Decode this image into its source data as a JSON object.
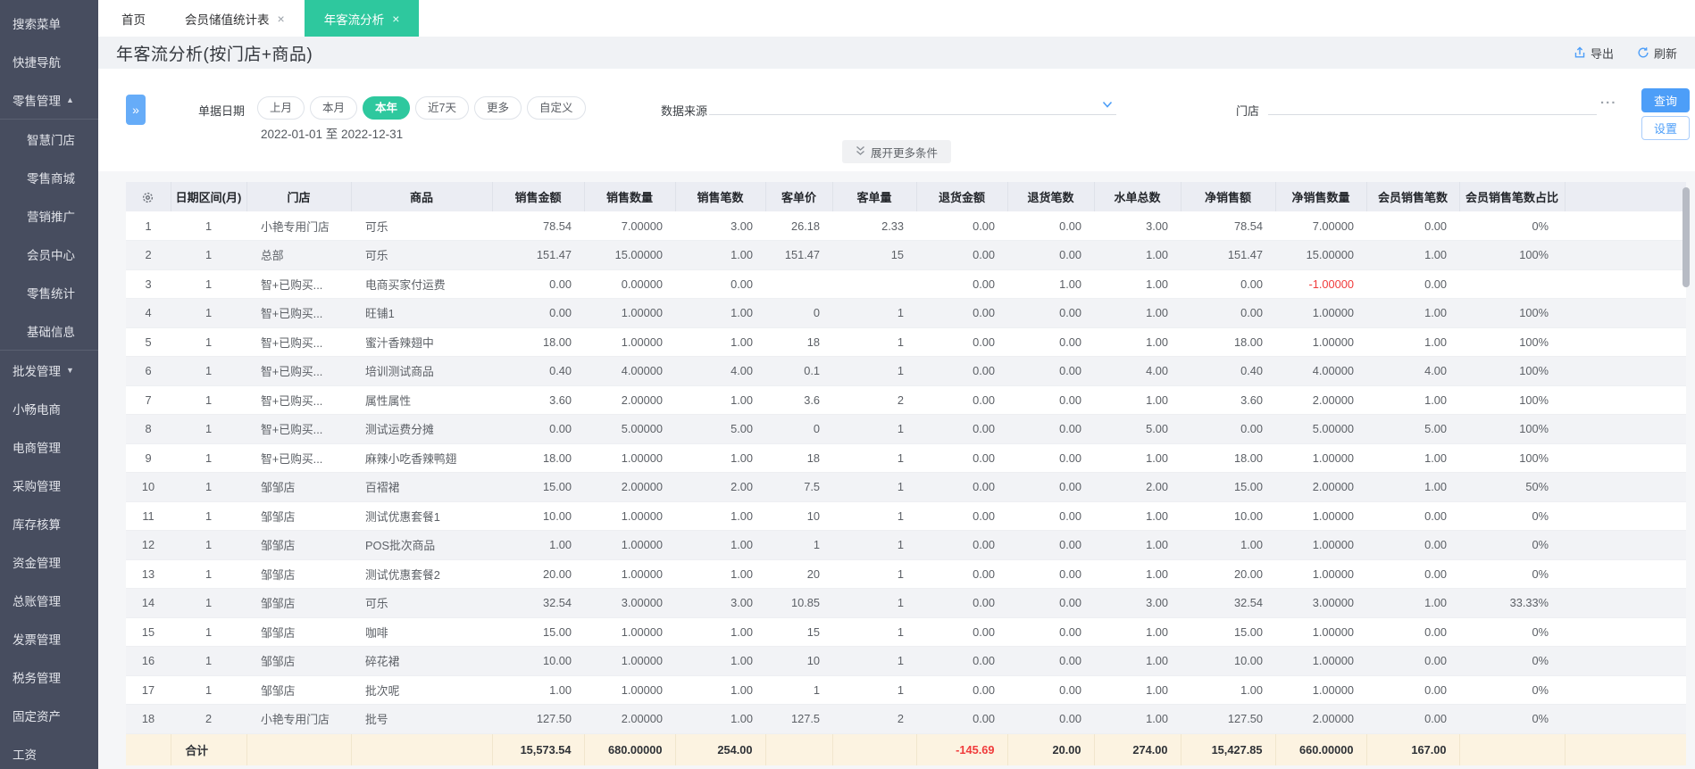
{
  "sidebar": {
    "items": [
      {
        "key": "search-menu",
        "label": "搜索菜单"
      },
      {
        "key": "quick-nav",
        "label": "快捷导航"
      },
      {
        "key": "retail-management",
        "label": "零售管理",
        "arrow": "up"
      },
      {
        "key": "smart-store",
        "label": "智慧门店",
        "indent": true,
        "divider": true
      },
      {
        "key": "retail-mall",
        "label": "零售商城",
        "indent": true
      },
      {
        "key": "marketing-promo",
        "label": "营销推广",
        "indent": true
      },
      {
        "key": "member-center",
        "label": "会员中心",
        "indent": true
      },
      {
        "key": "retail-stats",
        "label": "零售统计",
        "indent": true
      },
      {
        "key": "basic-info",
        "label": "基础信息",
        "indent": true
      },
      {
        "key": "wholesale-management",
        "label": "批发管理",
        "arrow": "down",
        "divider": true
      },
      {
        "key": "xiaochang-ecommerce",
        "label": "小畅电商"
      },
      {
        "key": "ecommerce-management",
        "label": "电商管理"
      },
      {
        "key": "purchase-management",
        "label": "采购管理"
      },
      {
        "key": "inventory-accounting",
        "label": "库存核算"
      },
      {
        "key": "funds-management",
        "label": "资金管理"
      },
      {
        "key": "general-ledger",
        "label": "总账管理"
      },
      {
        "key": "invoice-management",
        "label": "发票管理"
      },
      {
        "key": "tax-management",
        "label": "税务管理"
      },
      {
        "key": "fixed-assets",
        "label": "固定资产"
      },
      {
        "key": "payroll",
        "label": "工资"
      }
    ]
  },
  "tabs": {
    "items": [
      {
        "key": "home",
        "label": "首页",
        "closable": false,
        "active": false
      },
      {
        "key": "member-stored-value-report",
        "label": "会员储值统计表",
        "closable": true,
        "active": false
      },
      {
        "key": "annual-customer-flow",
        "label": "年客流分析",
        "closable": true,
        "active": true
      }
    ]
  },
  "header": {
    "title": "年客流分析(按门店+商品)",
    "export_label": "导出",
    "refresh_label": "刷新"
  },
  "filters": {
    "date_label": "单据日期",
    "date_pills": [
      {
        "key": "last-month",
        "label": "上月",
        "active": false
      },
      {
        "key": "this-month",
        "label": "本月",
        "active": false
      },
      {
        "key": "this-year",
        "label": "本年",
        "active": true
      },
      {
        "key": "last-7-days",
        "label": "近7天",
        "active": false
      },
      {
        "key": "more",
        "label": "更多",
        "active": false
      },
      {
        "key": "custom",
        "label": "自定义",
        "active": false
      }
    ],
    "date_range": "2022-01-01 至 2022-12-31",
    "source_label": "数据来源",
    "store_label": "门店",
    "more_dots": "...",
    "query_button": "查询",
    "settings_button": "设置",
    "expand_more": "展开更多条件"
  },
  "table": {
    "columns": [
      {
        "key": "date-interval-month",
        "label": "日期区间(月)"
      },
      {
        "key": "store",
        "label": "门店"
      },
      {
        "key": "product",
        "label": "商品"
      },
      {
        "key": "sales-amount",
        "label": "销售金额"
      },
      {
        "key": "sales-qty",
        "label": "销售数量"
      },
      {
        "key": "sales-count",
        "label": "销售笔数"
      },
      {
        "key": "per-customer-price",
        "label": "客单价"
      },
      {
        "key": "per-customer-qty",
        "label": "客单量"
      },
      {
        "key": "refund-amount",
        "label": "退货金额"
      },
      {
        "key": "refund-count",
        "label": "退货笔数"
      },
      {
        "key": "receipt-total",
        "label": "水单总数"
      },
      {
        "key": "net-sales-amount",
        "label": "净销售额"
      },
      {
        "key": "net-sales-qty",
        "label": "净销售数量"
      },
      {
        "key": "member-sales-count",
        "label": "会员销售笔数"
      },
      {
        "key": "member-sales-ratio",
        "label": "会员销售笔数占比"
      }
    ],
    "rows": [
      [
        "1",
        "小艳专用门店",
        "可乐",
        "78.54",
        "7.00000",
        "3.00",
        "26.18",
        "2.33",
        "0.00",
        "0.00",
        "3.00",
        "78.54",
        "7.00000",
        "0.00",
        "0%"
      ],
      [
        "1",
        "总部",
        "可乐",
        "151.47",
        "15.00000",
        "1.00",
        "151.47",
        "15",
        "0.00",
        "0.00",
        "1.00",
        "151.47",
        "15.00000",
        "1.00",
        "100%"
      ],
      [
        "1",
        "智+已购买...",
        "电商买家付运费",
        "0.00",
        "0.00000",
        "0.00",
        "",
        "",
        "0.00",
        "1.00",
        "1.00",
        "0.00",
        "-1.00000",
        "0.00",
        ""
      ],
      [
        "1",
        "智+已购买...",
        "旺铺1",
        "0.00",
        "1.00000",
        "1.00",
        "0",
        "1",
        "0.00",
        "0.00",
        "1.00",
        "0.00",
        "1.00000",
        "1.00",
        "100%"
      ],
      [
        "1",
        "智+已购买...",
        "蜜汁香辣翅中",
        "18.00",
        "1.00000",
        "1.00",
        "18",
        "1",
        "0.00",
        "0.00",
        "1.00",
        "18.00",
        "1.00000",
        "1.00",
        "100%"
      ],
      [
        "1",
        "智+已购买...",
        "培训测试商品",
        "0.40",
        "4.00000",
        "4.00",
        "0.1",
        "1",
        "0.00",
        "0.00",
        "4.00",
        "0.40",
        "4.00000",
        "4.00",
        "100%"
      ],
      [
        "1",
        "智+已购买...",
        "属性属性",
        "3.60",
        "2.00000",
        "1.00",
        "3.6",
        "2",
        "0.00",
        "0.00",
        "1.00",
        "3.60",
        "2.00000",
        "1.00",
        "100%"
      ],
      [
        "1",
        "智+已购买...",
        "测试运费分摊",
        "0.00",
        "5.00000",
        "5.00",
        "0",
        "1",
        "0.00",
        "0.00",
        "5.00",
        "0.00",
        "5.00000",
        "5.00",
        "100%"
      ],
      [
        "1",
        "智+已购买...",
        "麻辣小吃香辣鸭翅",
        "18.00",
        "1.00000",
        "1.00",
        "18",
        "1",
        "0.00",
        "0.00",
        "1.00",
        "18.00",
        "1.00000",
        "1.00",
        "100%"
      ],
      [
        "1",
        "邹邹店",
        "百褶裙",
        "15.00",
        "2.00000",
        "2.00",
        "7.5",
        "1",
        "0.00",
        "0.00",
        "2.00",
        "15.00",
        "2.00000",
        "1.00",
        "50%"
      ],
      [
        "1",
        "邹邹店",
        "测试优惠套餐1",
        "10.00",
        "1.00000",
        "1.00",
        "10",
        "1",
        "0.00",
        "0.00",
        "1.00",
        "10.00",
        "1.00000",
        "0.00",
        "0%"
      ],
      [
        "1",
        "邹邹店",
        "POS批次商品",
        "1.00",
        "1.00000",
        "1.00",
        "1",
        "1",
        "0.00",
        "0.00",
        "1.00",
        "1.00",
        "1.00000",
        "0.00",
        "0%"
      ],
      [
        "1",
        "邹邹店",
        "测试优惠套餐2",
        "20.00",
        "1.00000",
        "1.00",
        "20",
        "1",
        "0.00",
        "0.00",
        "1.00",
        "20.00",
        "1.00000",
        "0.00",
        "0%"
      ],
      [
        "1",
        "邹邹店",
        "可乐",
        "32.54",
        "3.00000",
        "3.00",
        "10.85",
        "1",
        "0.00",
        "0.00",
        "3.00",
        "32.54",
        "3.00000",
        "1.00",
        "33.33%"
      ],
      [
        "1",
        "邹邹店",
        "咖啡",
        "15.00",
        "1.00000",
        "1.00",
        "15",
        "1",
        "0.00",
        "0.00",
        "1.00",
        "15.00",
        "1.00000",
        "0.00",
        "0%"
      ],
      [
        "1",
        "邹邹店",
        "碎花裙",
        "10.00",
        "1.00000",
        "1.00",
        "10",
        "1",
        "0.00",
        "0.00",
        "1.00",
        "10.00",
        "1.00000",
        "0.00",
        "0%"
      ],
      [
        "1",
        "邹邹店",
        "批次呢",
        "1.00",
        "1.00000",
        "1.00",
        "1",
        "1",
        "0.00",
        "0.00",
        "1.00",
        "1.00",
        "1.00000",
        "0.00",
        "0%"
      ],
      [
        "2",
        "小艳专用门店",
        "批号",
        "127.50",
        "2.00000",
        "1.00",
        "127.5",
        "2",
        "0.00",
        "0.00",
        "1.00",
        "127.50",
        "2.00000",
        "0.00",
        "0%"
      ]
    ],
    "footer": [
      "合计",
      "",
      "",
      "15,573.54",
      "680.00000",
      "254.00",
      "",
      "",
      "-145.69",
      "20.00",
      "274.00",
      "15,427.85",
      "660.00000",
      "167.00",
      ""
    ]
  }
}
